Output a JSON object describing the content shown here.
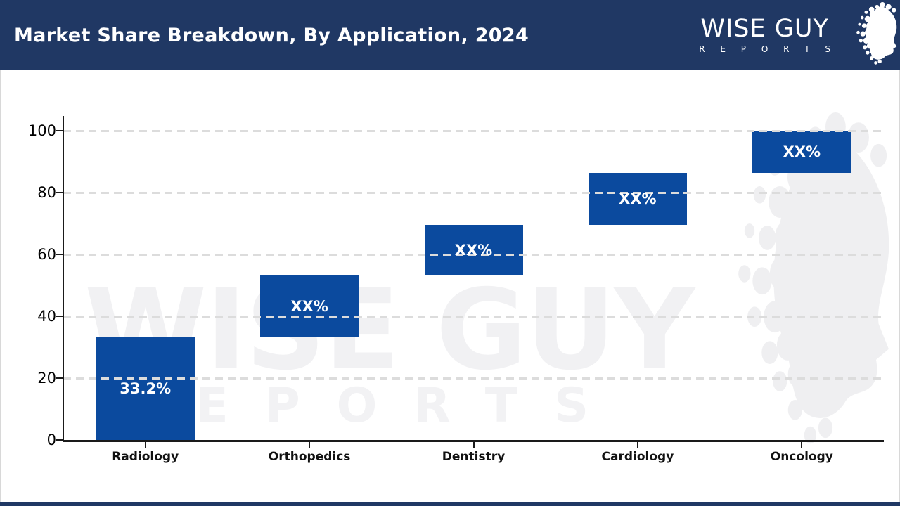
{
  "header": {
    "title": "Market Share Breakdown, By Application, 2024",
    "background_color": "#203864",
    "logo": {
      "line1": "WISE GUY",
      "line2": "R E P O R T S",
      "face_icon": "dotted-head-profile"
    }
  },
  "watermark": {
    "line1": "WISE GUY",
    "line2": "REPORTS",
    "face_icon": "dotted-head-profile"
  },
  "chart_data": {
    "type": "bar",
    "subtype": "waterfall",
    "title": "Market Share Breakdown, By Application, 2024",
    "categories": [
      "Radiology",
      "Orthopedics",
      "Dentistry",
      "Cardiology",
      "Oncology"
    ],
    "segments": [
      {
        "category": "Radiology",
        "start": 0,
        "end": 33.2,
        "label": "33.2%"
      },
      {
        "category": "Orthopedics",
        "start": 33.2,
        "end": 53.2,
        "label": "XX%"
      },
      {
        "category": "Dentistry",
        "start": 53.2,
        "end": 69.6,
        "label": "XX%"
      },
      {
        "category": "Cardiology",
        "start": 69.6,
        "end": 86.4,
        "label": "XX%"
      },
      {
        "category": "Oncology",
        "start": 86.4,
        "end": 100,
        "label": "XX%"
      }
    ],
    "ylim": [
      0,
      100
    ],
    "yticks": [
      0,
      20,
      40,
      60,
      80,
      100
    ],
    "xlabel": "",
    "ylabel": "",
    "grid": "horizontal dashed, drawn above bars",
    "legend": "none",
    "bar_color": "#0b4a9e",
    "bar_label_color": "#ffffff",
    "axis_color": "#1a1a1a"
  }
}
